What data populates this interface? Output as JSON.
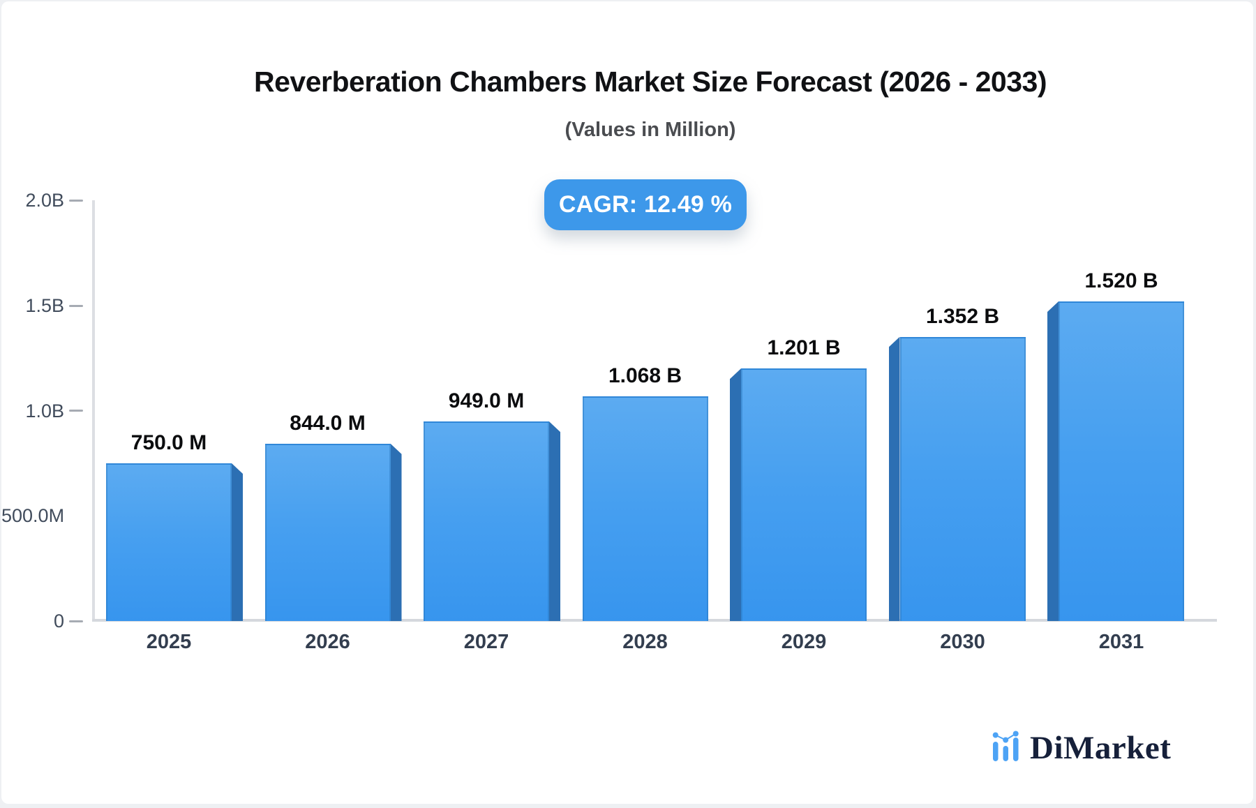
{
  "header": {
    "title": "Reverberation Chambers Market Size Forecast (2026 - 2033)",
    "subtitle": "(Values in Million)"
  },
  "badge": {
    "label": "CAGR: 12.49 %",
    "background_color": "#3d98ea",
    "text_color": "#ffffff"
  },
  "chart_data": {
    "type": "bar",
    "title": "Reverberation Chambers Market Size Forecast (2026 - 2033)",
    "subtitle": "(Values in Million)",
    "cagr_percent": 12.49,
    "categories": [
      "2025",
      "2026",
      "2027",
      "2028",
      "2029",
      "2030",
      "2031"
    ],
    "values_millions": [
      750,
      844,
      949,
      1068,
      1201,
      1352,
      1520
    ],
    "value_labels": [
      "750.0 M",
      "844.0 M",
      "949.0 M",
      "1.068 B",
      "1.201 B",
      "1.352 B",
      "1.520 B"
    ],
    "ylim_millions": [
      0,
      2000
    ],
    "y_axis": {
      "tick_labels": [
        "2.0B",
        "1.5B",
        "1.0B",
        "500.0M",
        "0"
      ],
      "tick_values_millions": [
        2000,
        1500,
        1000,
        500,
        0
      ],
      "tick_has_dash": [
        true,
        true,
        true,
        false,
        true
      ]
    },
    "grid": "off",
    "legend": "none",
    "bar_style": "3d",
    "bar_color_top": "#5cabf1",
    "bar_color_bottom": "#3795ee",
    "bar_side_color": "#2c6fb3",
    "axis_color": "#dcdee3"
  },
  "logo": {
    "text": "DiMarket",
    "icon": "mini-bar-chart-icon",
    "icon_color": "#4da3f5",
    "text_color": "#16203a"
  }
}
